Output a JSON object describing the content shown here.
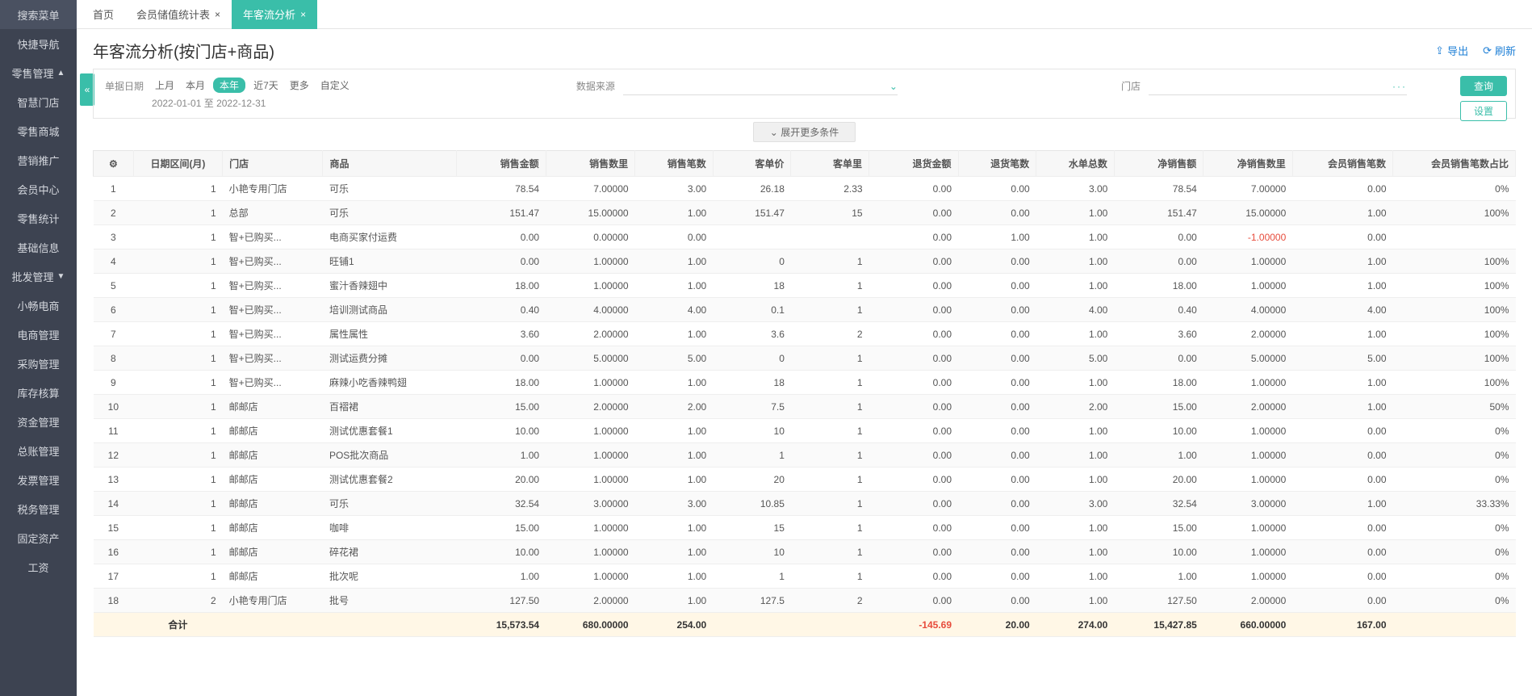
{
  "sidebar": {
    "items": [
      {
        "label": "搜索菜单"
      },
      {
        "label": "快捷导航"
      },
      {
        "label": "零售管理",
        "arrow": "▲",
        "expanded": true
      },
      {
        "label": "智慧门店",
        "sub": true
      },
      {
        "label": "零售商城",
        "sub": true
      },
      {
        "label": "营销推广",
        "sub": true
      },
      {
        "label": "会员中心",
        "sub": true
      },
      {
        "label": "零售统计",
        "sub": true
      },
      {
        "label": "基础信息",
        "sub": true
      },
      {
        "label": "批发管理",
        "arrow": "▼"
      },
      {
        "label": "小畅电商"
      },
      {
        "label": "电商管理"
      },
      {
        "label": "采购管理"
      },
      {
        "label": "库存核算"
      },
      {
        "label": "资金管理"
      },
      {
        "label": "总账管理"
      },
      {
        "label": "发票管理"
      },
      {
        "label": "税务管理"
      },
      {
        "label": "固定资产"
      },
      {
        "label": "工资"
      }
    ]
  },
  "tabs": [
    {
      "label": "首页",
      "closable": false
    },
    {
      "label": "会员储值统计表",
      "closable": true
    },
    {
      "label": "年客流分析",
      "closable": true,
      "active": true
    }
  ],
  "page": {
    "title": "年客流分析(按门店+商品)",
    "actions": {
      "export": "导出",
      "refresh": "刷新"
    }
  },
  "filter": {
    "collapse_icon": "«",
    "date_label": "单据日期",
    "date_opts": [
      "上月",
      "本月",
      "本年",
      "近7天",
      "更多",
      "自定义"
    ],
    "date_active_index": 2,
    "date_range": "2022-01-01 至 2022-12-31",
    "source_label": "数据来源",
    "store_label": "门店",
    "query_btn": "查询",
    "setting_btn": "设置",
    "expand_btn": "展开更多条件"
  },
  "table": {
    "gear_icon": "⚙",
    "columns": [
      "日期区间(月)",
      "门店",
      "商品",
      "销售金额",
      "销售数里",
      "销售笔数",
      "客单价",
      "客单里",
      "退货金额",
      "退货笔数",
      "水单总数",
      "净销售额",
      "净销售数里",
      "会员销售笔数",
      "会员销售笔数占比"
    ],
    "rows": [
      {
        "idx": "1",
        "month": "1",
        "store": "小艳专用门店",
        "product": "可乐",
        "sale_amt": "78.54",
        "sale_qty": "7.00000",
        "sale_cnt": "3.00",
        "avg_price": "26.18",
        "avg_qty": "2.33",
        "ret_amt": "0.00",
        "ret_cnt": "0.00",
        "total": "3.00",
        "net_amt": "78.54",
        "net_qty": "7.00000",
        "mem_cnt": "0.00",
        "mem_pct": "0%"
      },
      {
        "idx": "2",
        "month": "1",
        "store": "总部",
        "product": "可乐",
        "sale_amt": "151.47",
        "sale_qty": "15.00000",
        "sale_cnt": "1.00",
        "avg_price": "151.47",
        "avg_qty": "15",
        "ret_amt": "0.00",
        "ret_cnt": "0.00",
        "total": "1.00",
        "net_amt": "151.47",
        "net_qty": "15.00000",
        "mem_cnt": "1.00",
        "mem_pct": "100%"
      },
      {
        "idx": "3",
        "month": "1",
        "store": "智+已购买...",
        "product": "电商买家付运费",
        "sale_amt": "0.00",
        "sale_qty": "0.00000",
        "sale_cnt": "0.00",
        "avg_price": "",
        "avg_qty": "",
        "ret_amt": "0.00",
        "ret_cnt": "1.00",
        "total": "1.00",
        "net_amt": "0.00",
        "net_qty": "-1.00000",
        "net_qty_neg": true,
        "mem_cnt": "0.00",
        "mem_pct": ""
      },
      {
        "idx": "4",
        "month": "1",
        "store": "智+已购买...",
        "product": "旺铺1",
        "sale_amt": "0.00",
        "sale_qty": "1.00000",
        "sale_cnt": "1.00",
        "avg_price": "0",
        "avg_qty": "1",
        "ret_amt": "0.00",
        "ret_cnt": "0.00",
        "total": "1.00",
        "net_amt": "0.00",
        "net_qty": "1.00000",
        "mem_cnt": "1.00",
        "mem_pct": "100%"
      },
      {
        "idx": "5",
        "month": "1",
        "store": "智+已购买...",
        "product": "蜜汁香辣翅中",
        "sale_amt": "18.00",
        "sale_qty": "1.00000",
        "sale_cnt": "1.00",
        "avg_price": "18",
        "avg_qty": "1",
        "ret_amt": "0.00",
        "ret_cnt": "0.00",
        "total": "1.00",
        "net_amt": "18.00",
        "net_qty": "1.00000",
        "mem_cnt": "1.00",
        "mem_pct": "100%"
      },
      {
        "idx": "6",
        "month": "1",
        "store": "智+已购买...",
        "product": "培训测试商品",
        "sale_amt": "0.40",
        "sale_qty": "4.00000",
        "sale_cnt": "4.00",
        "avg_price": "0.1",
        "avg_qty": "1",
        "ret_amt": "0.00",
        "ret_cnt": "0.00",
        "total": "4.00",
        "net_amt": "0.40",
        "net_qty": "4.00000",
        "mem_cnt": "4.00",
        "mem_pct": "100%"
      },
      {
        "idx": "7",
        "month": "1",
        "store": "智+已购买...",
        "product": "属性属性",
        "sale_amt": "3.60",
        "sale_qty": "2.00000",
        "sale_cnt": "1.00",
        "avg_price": "3.6",
        "avg_qty": "2",
        "ret_amt": "0.00",
        "ret_cnt": "0.00",
        "total": "1.00",
        "net_amt": "3.60",
        "net_qty": "2.00000",
        "mem_cnt": "1.00",
        "mem_pct": "100%"
      },
      {
        "idx": "8",
        "month": "1",
        "store": "智+已购买...",
        "product": "测试运费分摊",
        "sale_amt": "0.00",
        "sale_qty": "5.00000",
        "sale_cnt": "5.00",
        "avg_price": "0",
        "avg_qty": "1",
        "ret_amt": "0.00",
        "ret_cnt": "0.00",
        "total": "5.00",
        "net_amt": "0.00",
        "net_qty": "5.00000",
        "mem_cnt": "5.00",
        "mem_pct": "100%"
      },
      {
        "idx": "9",
        "month": "1",
        "store": "智+已购买...",
        "product": "麻辣小吃香辣鸭翅",
        "sale_amt": "18.00",
        "sale_qty": "1.00000",
        "sale_cnt": "1.00",
        "avg_price": "18",
        "avg_qty": "1",
        "ret_amt": "0.00",
        "ret_cnt": "0.00",
        "total": "1.00",
        "net_amt": "18.00",
        "net_qty": "1.00000",
        "mem_cnt": "1.00",
        "mem_pct": "100%"
      },
      {
        "idx": "10",
        "month": "1",
        "store": "邮邮店",
        "product": "百褶裙",
        "sale_amt": "15.00",
        "sale_qty": "2.00000",
        "sale_cnt": "2.00",
        "avg_price": "7.5",
        "avg_qty": "1",
        "ret_amt": "0.00",
        "ret_cnt": "0.00",
        "total": "2.00",
        "net_amt": "15.00",
        "net_qty": "2.00000",
        "mem_cnt": "1.00",
        "mem_pct": "50%"
      },
      {
        "idx": "11",
        "month": "1",
        "store": "邮邮店",
        "product": "测试优惠套餐1",
        "sale_amt": "10.00",
        "sale_qty": "1.00000",
        "sale_cnt": "1.00",
        "avg_price": "10",
        "avg_qty": "1",
        "ret_amt": "0.00",
        "ret_cnt": "0.00",
        "total": "1.00",
        "net_amt": "10.00",
        "net_qty": "1.00000",
        "mem_cnt": "0.00",
        "mem_pct": "0%"
      },
      {
        "idx": "12",
        "month": "1",
        "store": "邮邮店",
        "product": "POS批次商品",
        "sale_amt": "1.00",
        "sale_qty": "1.00000",
        "sale_cnt": "1.00",
        "avg_price": "1",
        "avg_qty": "1",
        "ret_amt": "0.00",
        "ret_cnt": "0.00",
        "total": "1.00",
        "net_amt": "1.00",
        "net_qty": "1.00000",
        "mem_cnt": "0.00",
        "mem_pct": "0%"
      },
      {
        "idx": "13",
        "month": "1",
        "store": "邮邮店",
        "product": "测试优惠套餐2",
        "sale_amt": "20.00",
        "sale_qty": "1.00000",
        "sale_cnt": "1.00",
        "avg_price": "20",
        "avg_qty": "1",
        "ret_amt": "0.00",
        "ret_cnt": "0.00",
        "total": "1.00",
        "net_amt": "20.00",
        "net_qty": "1.00000",
        "mem_cnt": "0.00",
        "mem_pct": "0%"
      },
      {
        "idx": "14",
        "month": "1",
        "store": "邮邮店",
        "product": "可乐",
        "sale_amt": "32.54",
        "sale_qty": "3.00000",
        "sale_cnt": "3.00",
        "avg_price": "10.85",
        "avg_qty": "1",
        "ret_amt": "0.00",
        "ret_cnt": "0.00",
        "total": "3.00",
        "net_amt": "32.54",
        "net_qty": "3.00000",
        "mem_cnt": "1.00",
        "mem_pct": "33.33%"
      },
      {
        "idx": "15",
        "month": "1",
        "store": "邮邮店",
        "product": "咖啡",
        "sale_amt": "15.00",
        "sale_qty": "1.00000",
        "sale_cnt": "1.00",
        "avg_price": "15",
        "avg_qty": "1",
        "ret_amt": "0.00",
        "ret_cnt": "0.00",
        "total": "1.00",
        "net_amt": "15.00",
        "net_qty": "1.00000",
        "mem_cnt": "0.00",
        "mem_pct": "0%"
      },
      {
        "idx": "16",
        "month": "1",
        "store": "邮邮店",
        "product": "碎花裙",
        "sale_amt": "10.00",
        "sale_qty": "1.00000",
        "sale_cnt": "1.00",
        "avg_price": "10",
        "avg_qty": "1",
        "ret_amt": "0.00",
        "ret_cnt": "0.00",
        "total": "1.00",
        "net_amt": "10.00",
        "net_qty": "1.00000",
        "mem_cnt": "0.00",
        "mem_pct": "0%"
      },
      {
        "idx": "17",
        "month": "1",
        "store": "邮邮店",
        "product": "批次呢",
        "sale_amt": "1.00",
        "sale_qty": "1.00000",
        "sale_cnt": "1.00",
        "avg_price": "1",
        "avg_qty": "1",
        "ret_amt": "0.00",
        "ret_cnt": "0.00",
        "total": "1.00",
        "net_amt": "1.00",
        "net_qty": "1.00000",
        "mem_cnt": "0.00",
        "mem_pct": "0%"
      },
      {
        "idx": "18",
        "month": "2",
        "store": "小艳专用门店",
        "product": "批号",
        "sale_amt": "127.50",
        "sale_qty": "2.00000",
        "sale_cnt": "1.00",
        "avg_price": "127.5",
        "avg_qty": "2",
        "ret_amt": "0.00",
        "ret_cnt": "0.00",
        "total": "1.00",
        "net_amt": "127.50",
        "net_qty": "2.00000",
        "mem_cnt": "0.00",
        "mem_pct": "0%"
      }
    ],
    "footer": {
      "label": "合计",
      "sale_amt": "15,573.54",
      "sale_qty": "680.00000",
      "sale_cnt": "254.00",
      "avg_price": "",
      "avg_qty": "",
      "ret_amt": "-145.69",
      "ret_cnt": "20.00",
      "total": "274.00",
      "net_amt": "15,427.85",
      "net_qty": "660.00000",
      "mem_cnt": "167.00",
      "mem_pct": ""
    }
  }
}
